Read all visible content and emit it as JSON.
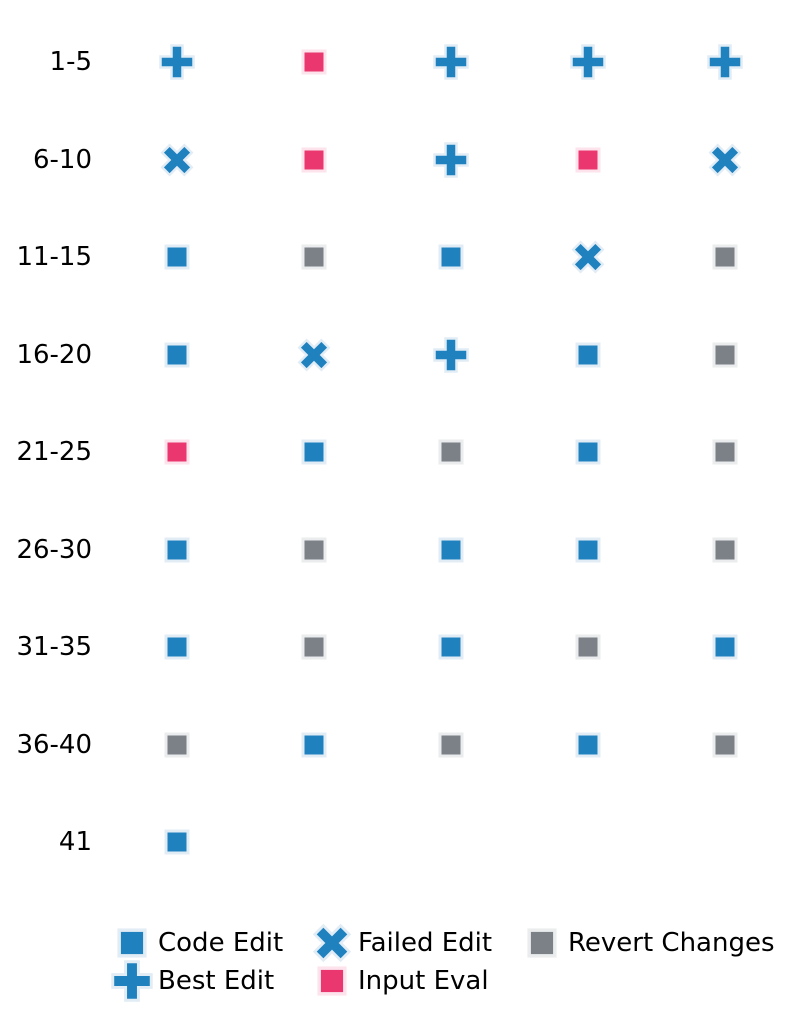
{
  "chart_data": {
    "type": "scatter",
    "title": "",
    "xlabel": "",
    "ylabel": "",
    "grid": false,
    "legend_position": "bottom",
    "row_labels": [
      "1-5",
      "6-10",
      "11-15",
      "16-20",
      "21-25",
      "26-30",
      "31-35",
      "36-40",
      "41"
    ],
    "rows": [
      {
        "label": "1-5",
        "markers": [
          "best_edit",
          "input_eval",
          "best_edit",
          "best_edit",
          "best_edit"
        ]
      },
      {
        "label": "6-10",
        "markers": [
          "failed_edit",
          "input_eval",
          "best_edit",
          "input_eval",
          "failed_edit"
        ]
      },
      {
        "label": "11-15",
        "markers": [
          "code_edit",
          "revert_changes",
          "code_edit",
          "failed_edit",
          "revert_changes"
        ]
      },
      {
        "label": "16-20",
        "markers": [
          "code_edit",
          "failed_edit",
          "best_edit",
          "code_edit",
          "revert_changes"
        ]
      },
      {
        "label": "21-25",
        "markers": [
          "input_eval",
          "code_edit",
          "revert_changes",
          "code_edit",
          "revert_changes"
        ]
      },
      {
        "label": "26-30",
        "markers": [
          "code_edit",
          "revert_changes",
          "code_edit",
          "code_edit",
          "revert_changes"
        ]
      },
      {
        "label": "31-35",
        "markers": [
          "code_edit",
          "revert_changes",
          "code_edit",
          "revert_changes",
          "code_edit"
        ]
      },
      {
        "label": "36-40",
        "markers": [
          "revert_changes",
          "code_edit",
          "revert_changes",
          "code_edit",
          "revert_changes"
        ]
      },
      {
        "label": "41",
        "markers": [
          "code_edit"
        ]
      }
    ],
    "marker_types": {
      "code_edit": {
        "label": "Code Edit",
        "shape": "square",
        "color": "#1f82bf",
        "edge_color": "#e1ecf5"
      },
      "failed_edit": {
        "label": "Failed Edit",
        "shape": "x",
        "color": "#1f82bf",
        "edge_color": "#e1ecf5"
      },
      "revert_changes": {
        "label": "Revert Changes",
        "shape": "square",
        "color": "#7b8187",
        "edge_color": "#eaeced"
      },
      "best_edit": {
        "label": "Best Edit",
        "shape": "plus",
        "color": "#1f82bf",
        "edge_color": "#e1ecf5"
      },
      "input_eval": {
        "label": "Input Eval",
        "shape": "square",
        "color": "#ea376f",
        "edge_color": "#fce3ec"
      }
    },
    "legend_rows": [
      [
        "code_edit",
        "failed_edit",
        "revert_changes"
      ],
      [
        "best_edit",
        "input_eval"
      ]
    ],
    "colors": {
      "blue": "#1f82bf",
      "pink": "#ea376f",
      "gray": "#7b8187",
      "text": "#000000",
      "background": "#ffffff"
    }
  }
}
